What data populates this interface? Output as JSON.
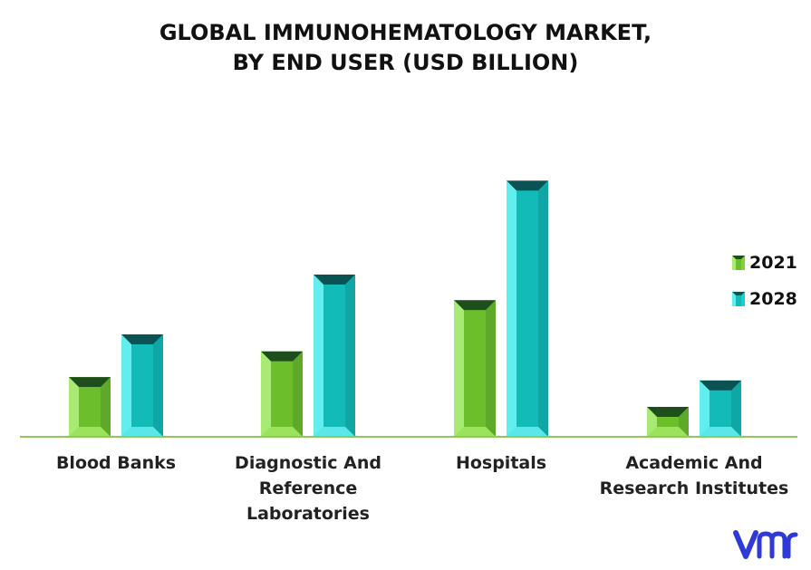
{
  "chart_data": {
    "type": "bar",
    "title_lines": [
      "GLOBAL IMMUNOHEMATOLOGY MARKET,",
      "BY END USER (USD BILLION)"
    ],
    "categories": [
      [
        "Blood Banks"
      ],
      [
        "Diagnostic And",
        "Reference",
        "Laboratories"
      ],
      [
        "Hospitals"
      ],
      [
        "Academic And",
        "Research Institutes"
      ]
    ],
    "series": [
      {
        "name": "2021",
        "values": [
          0.7,
          1.0,
          1.6,
          0.35
        ],
        "color": "#7fd23a"
      },
      {
        "name": "2028",
        "values": [
          1.2,
          1.9,
          3.0,
          0.66
        ],
        "color": "#19d0cf"
      }
    ],
    "ylim": [
      0,
      3.1
    ],
    "grid": false,
    "legend_position": "right"
  }
}
